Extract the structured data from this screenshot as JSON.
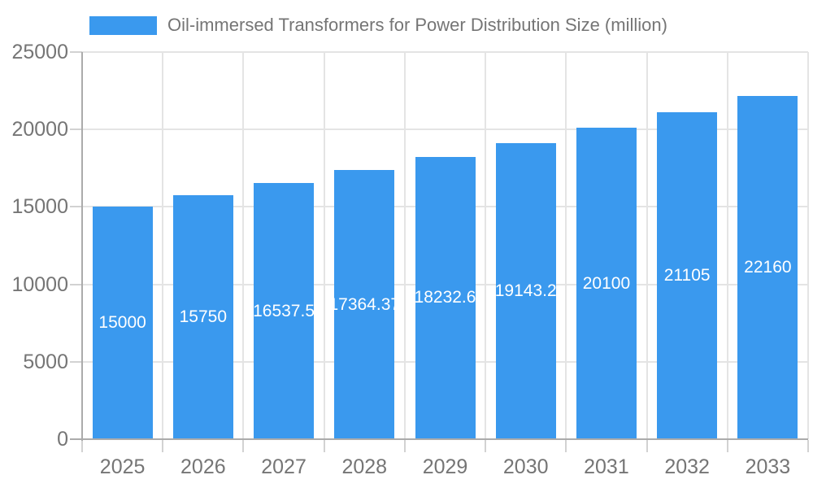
{
  "legend": {
    "label": "Oil-immersed Transformers for Power Distribution Size (million)"
  },
  "chart_data": {
    "type": "bar",
    "title": "",
    "categories": [
      "2025",
      "2026",
      "2027",
      "2028",
      "2029",
      "2030",
      "2031",
      "2032",
      "2033"
    ],
    "series": [
      {
        "name": "Oil-immersed Transformers for Power Distribution Size (million)",
        "values": [
          15000,
          15750,
          16537.5,
          17364.37,
          18232.6,
          19143.2,
          20100,
          21105,
          22160
        ],
        "labels": [
          "15000",
          "15750",
          "16537.5",
          "17364.37",
          "18232.6",
          "19143.2",
          "20100",
          "21105",
          "22160"
        ]
      }
    ],
    "xlabel": "",
    "ylabel": "",
    "ylim": [
      0,
      25000
    ],
    "yticks": [
      0,
      5000,
      10000,
      15000,
      20000,
      25000
    ],
    "grid": true,
    "legend_position": "top-left",
    "colors": {
      "bar": "#3a99ee",
      "axis_text": "#757575",
      "value_text": "#ffffff",
      "gridline": "#e4e4e4",
      "axis_line": "#ababab",
      "tick_mark": "#d2d2d2"
    }
  }
}
